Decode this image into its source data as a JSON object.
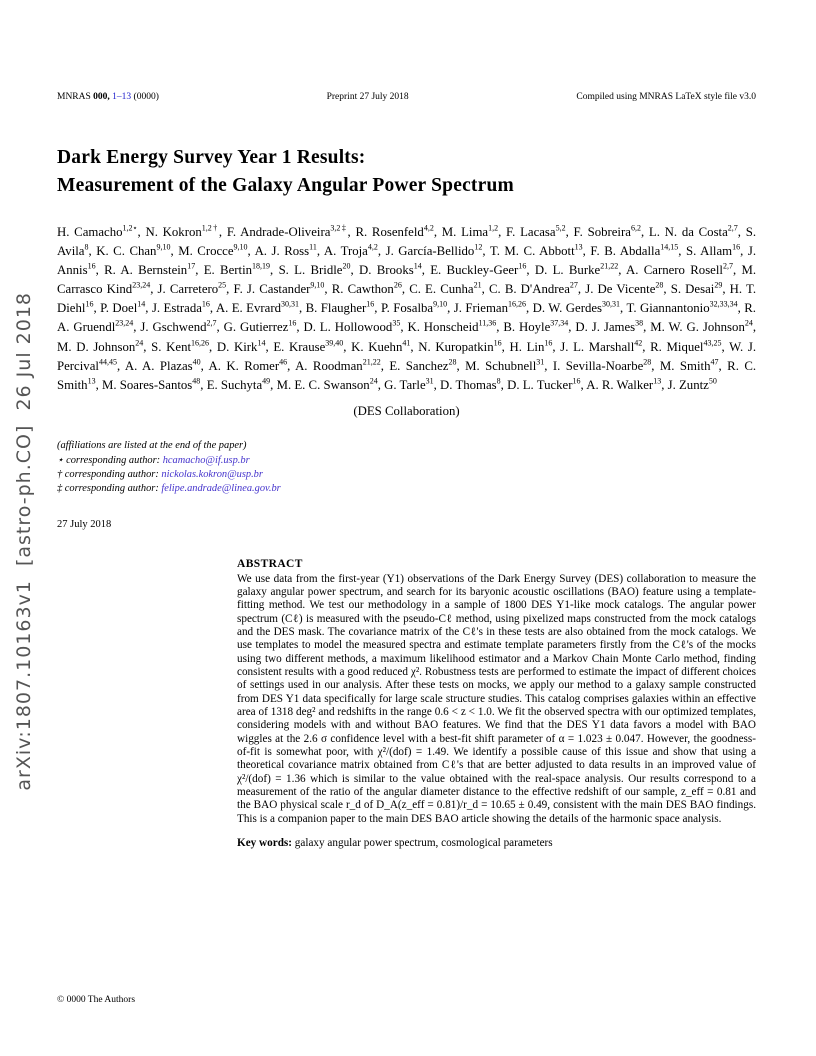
{
  "header": {
    "journal": "MNRAS",
    "volume": "000,",
    "pages": "1–13",
    "year": "(0000)",
    "center": "Preprint 27 July 2018",
    "right": "Compiled using MNRAS LaTeX style file v3.0"
  },
  "title": {
    "line1": "Dark Energy Survey Year 1 Results:",
    "line2": "Measurement of the Galaxy Angular Power Spectrum"
  },
  "authors": [
    {
      "name": "H. Camacho",
      "sup": "1,2⋆"
    },
    {
      "name": "N. Kokron",
      "sup": "1,2†"
    },
    {
      "name": "F. Andrade-Oliveira",
      "sup": "3,2‡"
    },
    {
      "name": "R. Rosenfeld",
      "sup": "4,2"
    },
    {
      "name": "M. Lima",
      "sup": "1,2"
    },
    {
      "name": "F. Lacasa",
      "sup": "5,2"
    },
    {
      "name": "F. Sobreira",
      "sup": "6,2"
    },
    {
      "name": "L. N. da Costa",
      "sup": "2,7"
    },
    {
      "name": "S. Avila",
      "sup": "8"
    },
    {
      "name": "K. C. Chan",
      "sup": "9,10"
    },
    {
      "name": "M. Crocce",
      "sup": "9,10"
    },
    {
      "name": "A. J. Ross",
      "sup": "11"
    },
    {
      "name": "A. Troja",
      "sup": "4,2"
    },
    {
      "name": "J. García-Bellido",
      "sup": "12"
    },
    {
      "name": "T. M. C. Abbott",
      "sup": "13"
    },
    {
      "name": "F. B. Abdalla",
      "sup": "14,15"
    },
    {
      "name": "S. Allam",
      "sup": "16"
    },
    {
      "name": "J. Annis",
      "sup": "16"
    },
    {
      "name": "R. A. Bernstein",
      "sup": "17"
    },
    {
      "name": "E. Bertin",
      "sup": "18,19"
    },
    {
      "name": "S. L. Bridle",
      "sup": "20"
    },
    {
      "name": "D. Brooks",
      "sup": "14"
    },
    {
      "name": "E. Buckley-Geer",
      "sup": "16"
    },
    {
      "name": "D. L. Burke",
      "sup": "21,22"
    },
    {
      "name": "A. Carnero Rosell",
      "sup": "2,7"
    },
    {
      "name": "M. Carrasco Kind",
      "sup": "23,24"
    },
    {
      "name": "J. Carretero",
      "sup": "25"
    },
    {
      "name": "F. J. Castander",
      "sup": "9,10"
    },
    {
      "name": "R. Cawthon",
      "sup": "26"
    },
    {
      "name": "C. E. Cunha",
      "sup": "21"
    },
    {
      "name": "C. B. D'Andrea",
      "sup": "27"
    },
    {
      "name": "J. De Vicente",
      "sup": "28"
    },
    {
      "name": "S. Desai",
      "sup": "29"
    },
    {
      "name": "H. T. Diehl",
      "sup": "16"
    },
    {
      "name": "P. Doel",
      "sup": "14"
    },
    {
      "name": "J. Estrada",
      "sup": "16"
    },
    {
      "name": "A. E. Evrard",
      "sup": "30,31"
    },
    {
      "name": "B. Flaugher",
      "sup": "16"
    },
    {
      "name": "P. Fosalba",
      "sup": "9,10"
    },
    {
      "name": "J. Frieman",
      "sup": "16,26"
    },
    {
      "name": "D. W. Gerdes",
      "sup": "30,31"
    },
    {
      "name": "T. Giannantonio",
      "sup": "32,33,34"
    },
    {
      "name": "R. A. Gruendl",
      "sup": "23,24"
    },
    {
      "name": "J. Gschwend",
      "sup": "2,7"
    },
    {
      "name": "G. Gutierrez",
      "sup": "16"
    },
    {
      "name": "D. L. Hollowood",
      "sup": "35"
    },
    {
      "name": "K. Honscheid",
      "sup": "11,36"
    },
    {
      "name": "B. Hoyle",
      "sup": "37,34"
    },
    {
      "name": "D. J. James",
      "sup": "38"
    },
    {
      "name": "M. W. G. Johnson",
      "sup": "24"
    },
    {
      "name": "M. D. Johnson",
      "sup": "24"
    },
    {
      "name": "S. Kent",
      "sup": "16,26"
    },
    {
      "name": "D. Kirk",
      "sup": "14"
    },
    {
      "name": "E. Krause",
      "sup": "39,40"
    },
    {
      "name": "K. Kuehn",
      "sup": "41"
    },
    {
      "name": "N. Kuropatkin",
      "sup": "16"
    },
    {
      "name": "H. Lin",
      "sup": "16"
    },
    {
      "name": "J. L. Marshall",
      "sup": "42"
    },
    {
      "name": "R. Miquel",
      "sup": "43,25"
    },
    {
      "name": "W. J. Percival",
      "sup": "44,45"
    },
    {
      "name": "A. A. Plazas",
      "sup": "40"
    },
    {
      "name": "A. K. Romer",
      "sup": "46"
    },
    {
      "name": "A. Roodman",
      "sup": "21,22"
    },
    {
      "name": "E. Sanchez",
      "sup": "28"
    },
    {
      "name": "M. Schubnell",
      "sup": "31"
    },
    {
      "name": "I. Sevilla-Noarbe",
      "sup": "28"
    },
    {
      "name": "M. Smith",
      "sup": "47"
    },
    {
      "name": "R. C. Smith",
      "sup": "13"
    },
    {
      "name": "M. Soares-Santos",
      "sup": "48"
    },
    {
      "name": "E. Suchyta",
      "sup": "49"
    },
    {
      "name": "M. E. C. Swanson",
      "sup": "24"
    },
    {
      "name": "G. Tarle",
      "sup": "31"
    },
    {
      "name": "D. Thomas",
      "sup": "8"
    },
    {
      "name": "D. L. Tucker",
      "sup": "16"
    },
    {
      "name": "A. R. Walker",
      "sup": "13"
    },
    {
      "name": "J. Zuntz",
      "sup": "50"
    }
  ],
  "collaboration": "(DES Collaboration)",
  "affiliation_note": "(affiliations are listed at the end of the paper)",
  "correspondence": [
    {
      "symbol": "⋆",
      "text": "corresponding author:",
      "email": "hcamacho@if.usp.br"
    },
    {
      "symbol": "†",
      "text": "corresponding author:",
      "email": "nickolas.kokron@usp.br"
    },
    {
      "symbol": "‡",
      "text": "corresponding author:",
      "email": "felipe.andrade@linea.gov.br"
    }
  ],
  "date": "27 July 2018",
  "abstract": {
    "heading": "ABSTRACT",
    "text": "We use data from the first-year (Y1) observations of the Dark Energy Survey (DES) collaboration to measure the galaxy angular power spectrum, and search for its baryonic acoustic oscillations (BAO) feature using a template-fitting method. We test our methodology in a sample of 1800 DES Y1-like mock catalogs. The angular power spectrum (Cℓ) is measured with the pseudo-Cℓ method, using pixelized maps constructed from the mock catalogs and the DES mask. The covariance matrix of the Cℓ's in these tests are also obtained from the mock catalogs. We use templates to model the measured spectra and estimate template parameters firstly from the Cℓ's of the mocks using two different methods, a maximum likelihood estimator and a Markov Chain Monte Carlo method, finding consistent results with a good reduced χ². Robustness tests are performed to estimate the impact of different choices of settings used in our analysis. After these tests on mocks, we apply our method to a galaxy sample constructed from DES Y1 data specifically for large scale structure studies. This catalog comprises galaxies within an effective area of 1318 deg² and redshifts in the range 0.6 < z < 1.0. We fit the observed spectra with our optimized templates, considering models with and without BAO features. We find that the DES Y1 data favors a model with BAO wiggles at the 2.6 σ confidence level with a best-fit shift parameter of α = 1.023 ± 0.047. However, the goodness-of-fit is somewhat poor, with χ²/(dof) = 1.49. We identify a possible cause of this issue and show that using a theoretical covariance matrix obtained from Cℓ's that are better adjusted to data results in an improved value of χ²/(dof) = 1.36 which is similar to the value obtained with the real-space analysis. Our results correspond to a measurement of the ratio of the angular diameter distance to the effective redshift of our sample, z_eff = 0.81 and the BAO physical scale r_d of D_A(z_eff = 0.81)/r_d = 10.65 ± 0.49, consistent with the main DES BAO findings. This is a companion paper to the main DES BAO article showing the details of the harmonic space analysis."
  },
  "keywords": {
    "label": "Key words:",
    "text": "galaxy angular power spectrum, cosmological parameters"
  },
  "footer": "© 0000 The Authors",
  "watermark": "arXiv:1807.10163v1  [astro-ph.CO]  26 Jul 2018",
  "colors": {
    "link": "#2222cc",
    "email": "#4433cc",
    "watermark": "#555555"
  }
}
